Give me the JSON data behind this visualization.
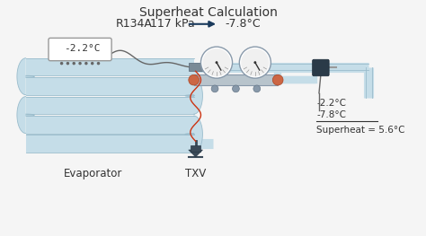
{
  "title": "Superheat Calculation",
  "bg_color": "#f5f5f5",
  "light_blue": "#c5dde8",
  "mid_blue": "#9abccc",
  "dark_navy": "#1a3a5c",
  "gray": "#999999",
  "dark_gray": "#333333",
  "med_gray": "#666666",
  "red": "#cc3311",
  "label_evaporator": "Evaporator",
  "label_txv": "TXV",
  "label_superheat": "Superheat = 5.6°C",
  "temp_display": "-2.2°C",
  "temp1": "-2.2°C",
  "temp2": "-7.8°C",
  "r134a": "R134A",
  "kpa": "117 kPa",
  "sat_temp": "-7.8°C",
  "title_fontsize": 10,
  "sub_fontsize": 9,
  "label_fontsize": 8.5,
  "small_fontsize": 7.5
}
